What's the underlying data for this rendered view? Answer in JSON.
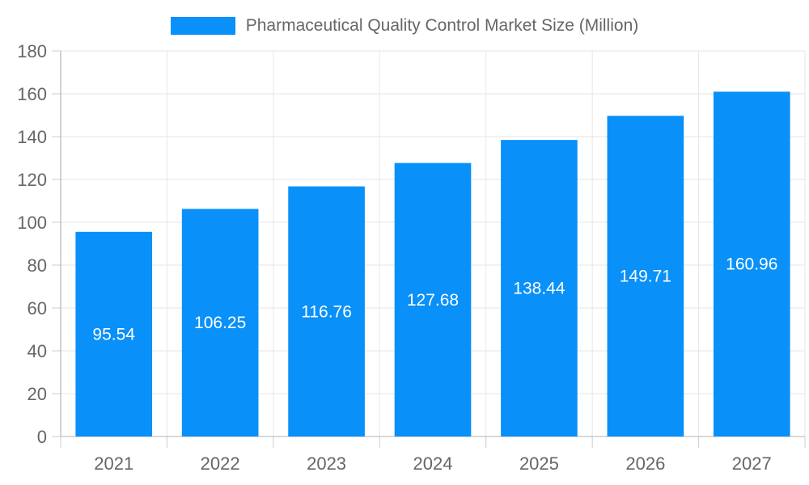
{
  "chart_data": {
    "type": "bar",
    "title": "Pharmaceutical Quality Control Market Size (Million)",
    "categories": [
      "2021",
      "2022",
      "2023",
      "2024",
      "2025",
      "2026",
      "2027"
    ],
    "series": [
      {
        "name": "Pharmaceutical Quality Control Market Size (Million)",
        "values": [
          95.54,
          106.25,
          116.76,
          127.68,
          138.44,
          149.71,
          160.96
        ]
      }
    ],
    "data_labels": [
      "95.54",
      "106.25",
      "116.76",
      "127.68",
      "138.44",
      "149.71",
      "160.96"
    ],
    "xlabel": "",
    "ylabel": "",
    "ylim": [
      0,
      180
    ],
    "yticks": [
      0,
      20,
      40,
      60,
      80,
      100,
      120,
      140,
      160,
      180
    ],
    "ytick_labels": [
      "0",
      "20",
      "40",
      "60",
      "80",
      "100",
      "120",
      "140",
      "160",
      "180"
    ],
    "grid": true,
    "legend_position": "top",
    "data_label_position": "inside-center",
    "colors": {
      "bar": "#0990f9",
      "data_label_text": "#ffffff",
      "axis_text": "#666666",
      "grid_line": "#e6e6e6",
      "y_axis_line": "#a6a6a6",
      "x_axis_line": "#b3b3b3",
      "tick_mark": "#cccccc",
      "background": "#ffffff"
    }
  }
}
